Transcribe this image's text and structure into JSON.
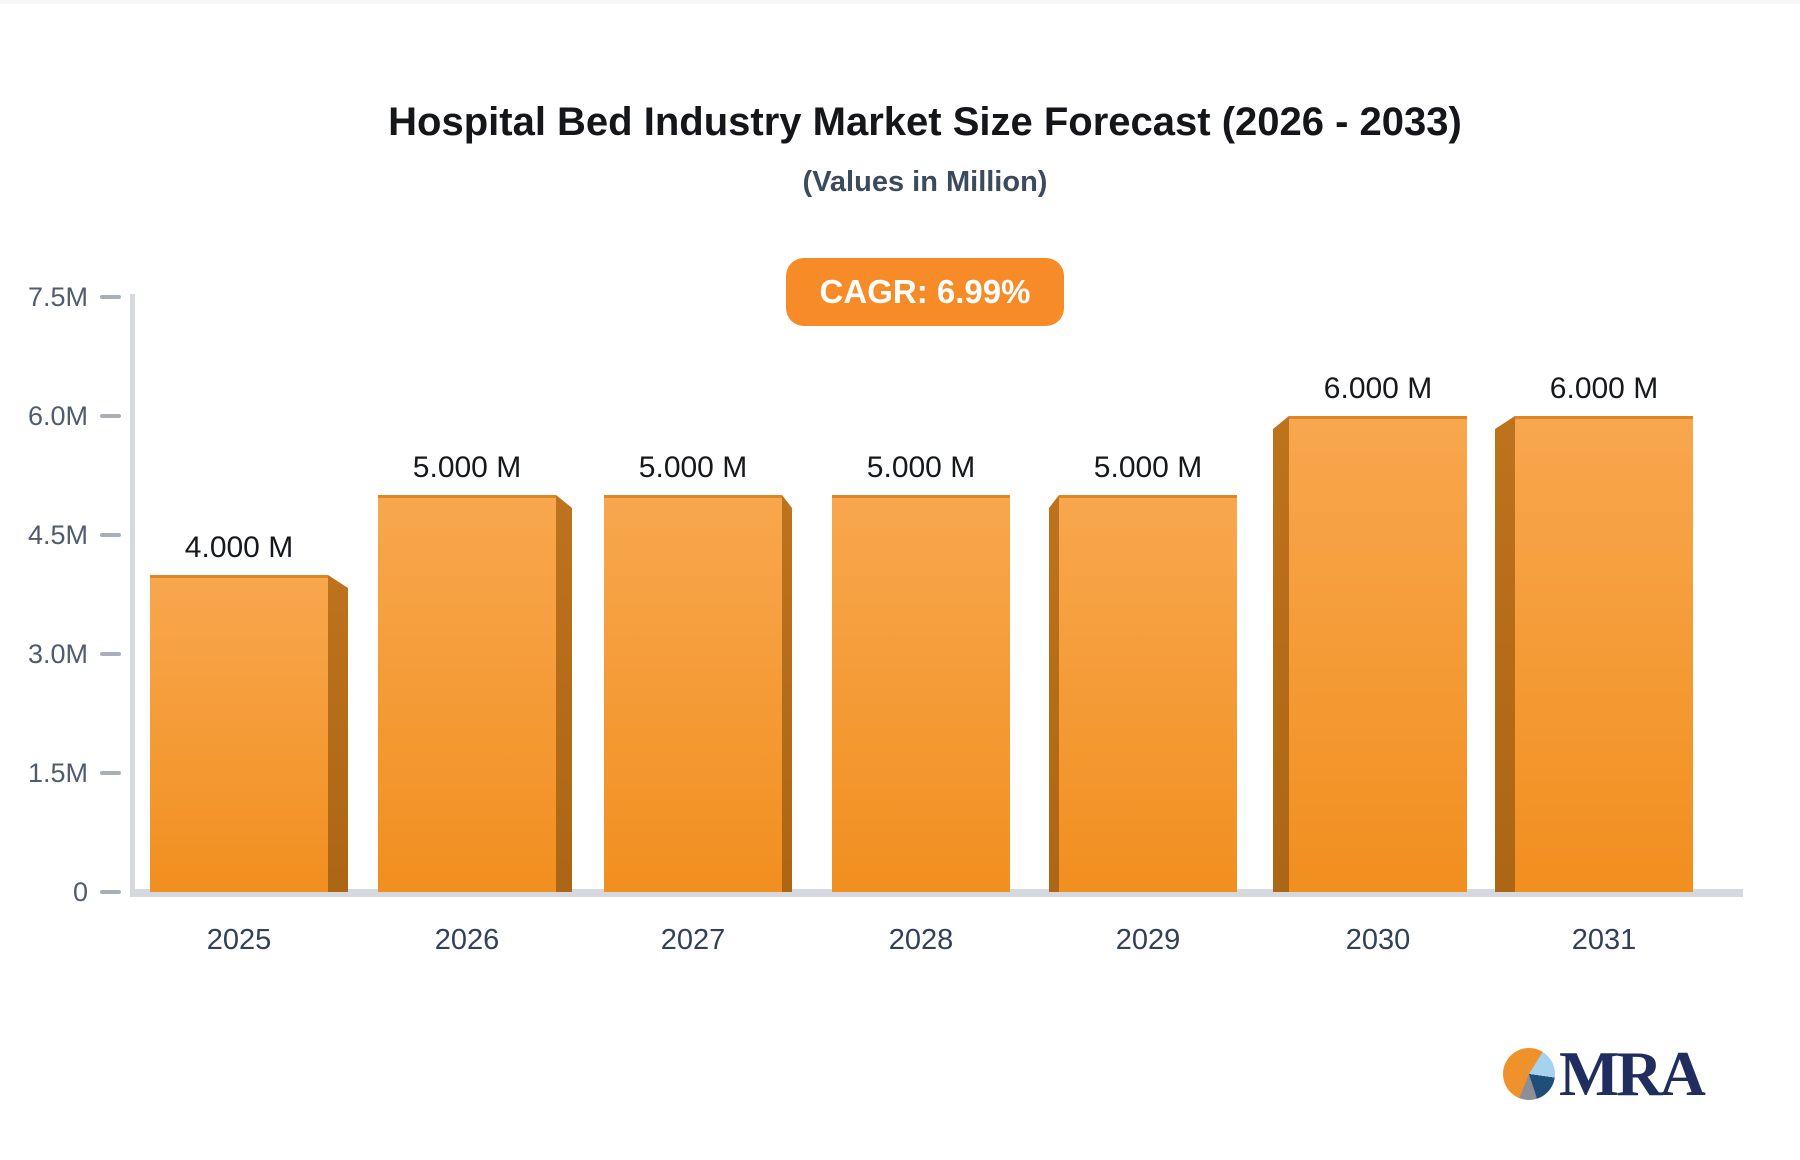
{
  "title": "Hospital Bed Industry Market Size Forecast (2026 - 2033)",
  "subtitle": "(Values in Million)",
  "badge": {
    "label": "CAGR: 6.99%"
  },
  "chart_data": {
    "type": "bar",
    "title": "Hospital Bed Industry Market Size Forecast (2026 - 2033)",
    "subtitle": "(Values in Million)",
    "unit": "Million",
    "categories": [
      "2025",
      "2026",
      "2027",
      "2028",
      "2029",
      "2030",
      "2031"
    ],
    "values": [
      4,
      5,
      5,
      5,
      5,
      6,
      6
    ],
    "value_labels": [
      "4.000 M",
      "5.000 M",
      "5.000 M",
      "5.000 M",
      "5.000 M",
      "6.000 M",
      "6.000 M"
    ],
    "cagr_label": "CAGR: 6.99%",
    "y_ticks": [
      {
        "value": 0,
        "label": "0"
      },
      {
        "value": 1.5,
        "label": "1.5M"
      },
      {
        "value": 3,
        "label": "3.0M"
      },
      {
        "value": 4.5,
        "label": "4.5M"
      },
      {
        "value": 6,
        "label": "6.0M"
      },
      {
        "value": 7.5,
        "label": "7.5M"
      }
    ],
    "ylim": [
      0,
      7.5
    ],
    "grid": false,
    "legend": false,
    "bar_style": "3d-perspective-center",
    "colors": {
      "bar_face_top": "#F8A74E",
      "bar_face_bottom": "#F18F1F",
      "bar_top_edge": "#DE8526",
      "bar_side": "#BE721C",
      "bar_side_dark": "#AC6614",
      "badge_bg": "#F68B28",
      "axis_line": "#D5D9DF",
      "tick": "#A9AFB9",
      "value_label": "#15181D",
      "axis_label": "#515B6E",
      "category_label": "#33405A"
    }
  },
  "logo": {
    "text": "MRA",
    "text_color": "#1F2E5F",
    "pie_colors": {
      "orange": "#F0922B",
      "light_blue": "#A5D2EC",
      "navy": "#1F4E79",
      "gray": "#8E8E96"
    }
  }
}
